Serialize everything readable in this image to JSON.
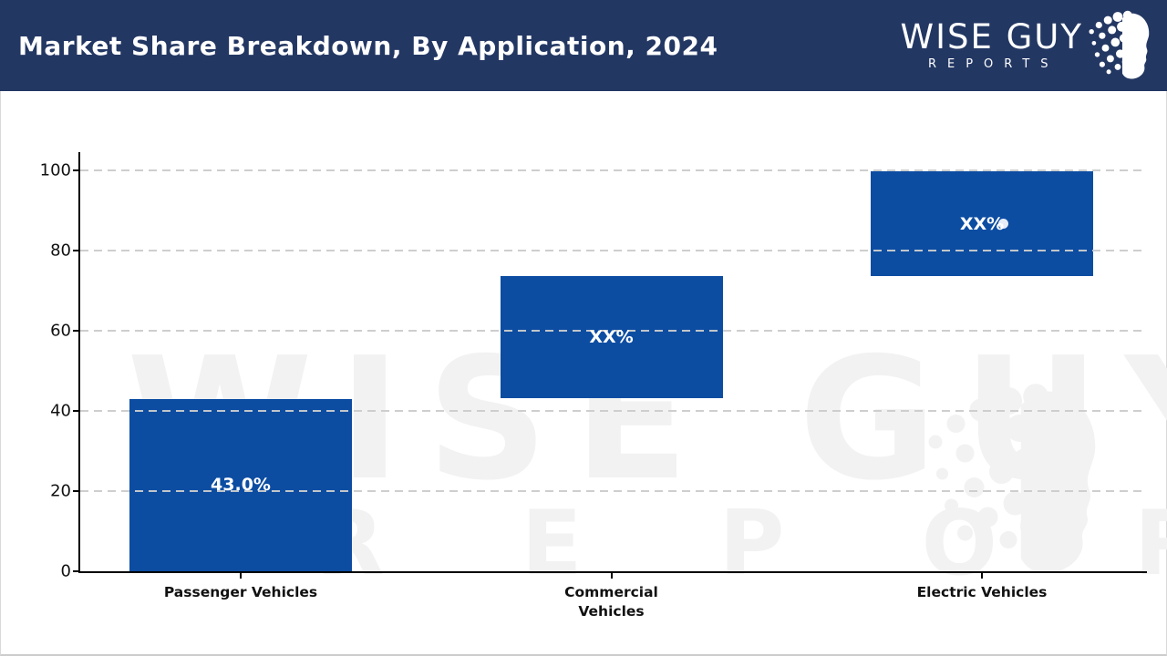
{
  "header": {
    "title": "Market Share Breakdown, By Application, 2024",
    "logo": {
      "line1": "WISE GUY",
      "line2": "REPORTS"
    }
  },
  "watermark": {
    "line1": "WISE GUY",
    "line2": "R E P O R T S"
  },
  "colors": {
    "header_bg": "#233763",
    "bar_blue": "#0C4DA2",
    "grid_gray": "#CCCCCC",
    "watermark_gray": "#F2F2F2",
    "bar_label_white": "#FFFFFF"
  },
  "chart_data": {
    "type": "bar",
    "subtype": "waterfall",
    "title": "Market Share Breakdown, By Application, 2024",
    "xlabel": "",
    "ylabel": "",
    "categories": [
      "Passenger Vehicles",
      "Commercial\nVehicles",
      "Electric Vehicles"
    ],
    "segments": [
      {
        "category": "Passenger Vehicles",
        "start": 0,
        "end": 43.0,
        "label": "43.0%"
      },
      {
        "category": "Commercial\nVehicles",
        "start": 43.2,
        "end": 73.6,
        "label": "XX%"
      },
      {
        "category": "Electric Vehicles",
        "start": 73.6,
        "end": 99.8,
        "label": "XX%"
      }
    ],
    "yticks": [
      0,
      20,
      40,
      60,
      80,
      100
    ],
    "ylim": [
      0,
      104.5
    ],
    "grid": "dashed-horizontal",
    "legend": "none",
    "bar_color": "#0C4DA2"
  }
}
